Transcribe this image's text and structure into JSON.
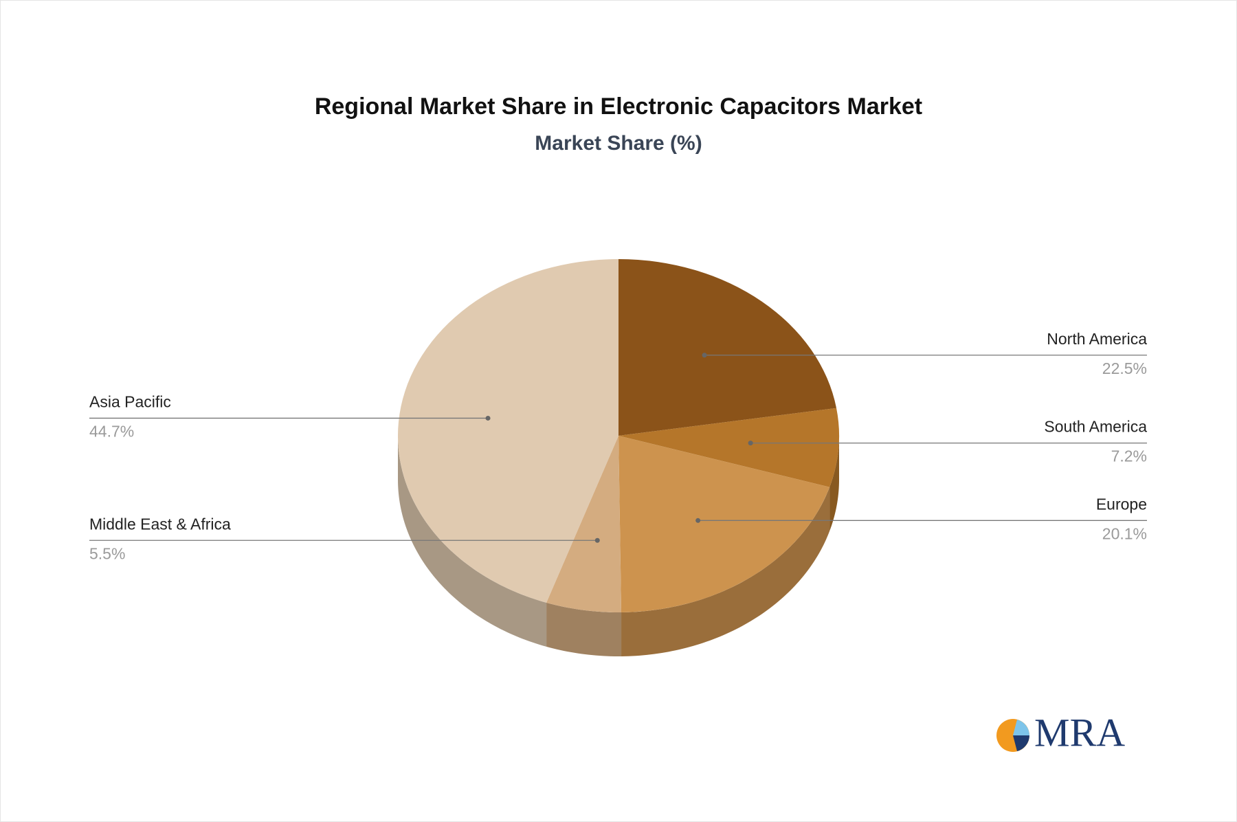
{
  "chart_data": {
    "type": "pie3d",
    "title": "Regional Market Share in Electronic Capacitors Market",
    "subtitle": "Market Share (%)",
    "categories": [
      "North America",
      "South America",
      "Europe",
      "Middle East & Africa",
      "Asia Pacific"
    ],
    "values": [
      22.5,
      7.2,
      20.1,
      5.5,
      44.7
    ],
    "value_labels": [
      "22.5%",
      "7.2%",
      "20.1%",
      "5.5%",
      "44.7%"
    ],
    "colors": [
      "#8b5319",
      "#b5762a",
      "#cd934e",
      "#d4ac80",
      "#e0cab0"
    ]
  },
  "logo": "MRA"
}
